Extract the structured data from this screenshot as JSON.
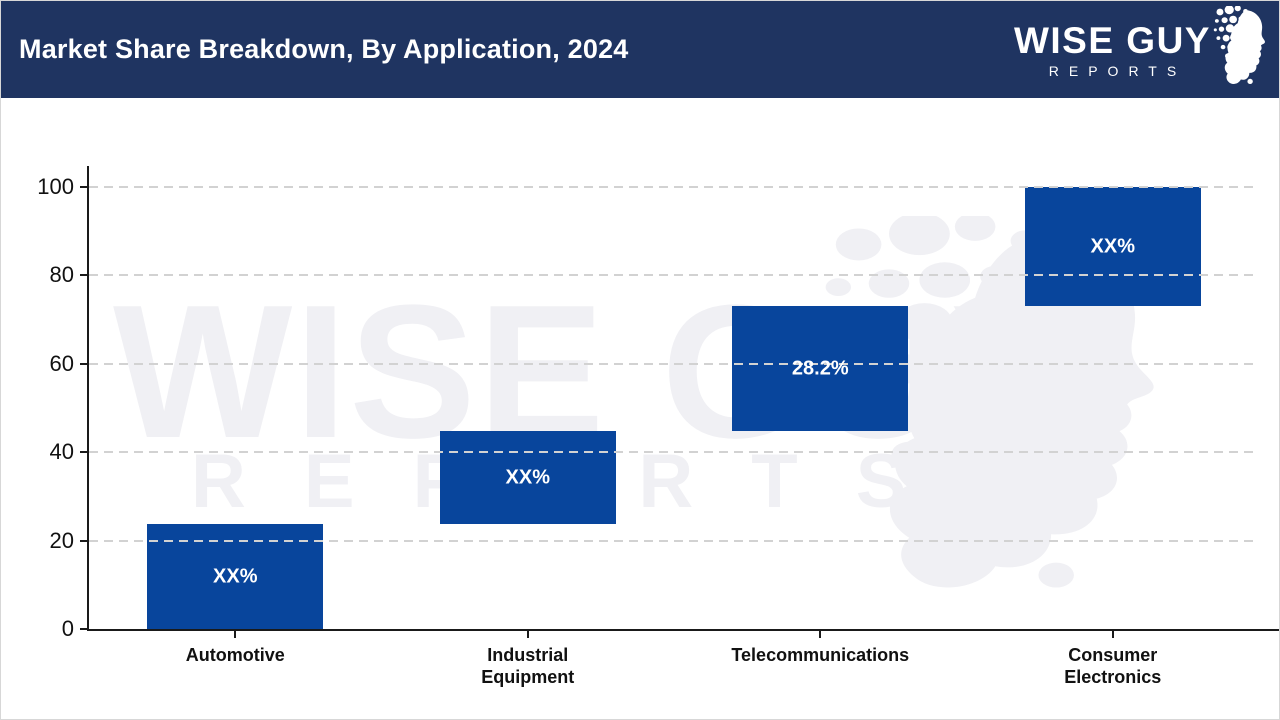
{
  "header": {
    "title": "Market Share Breakdown, By Application, 2024",
    "logo": {
      "wordmark": "WISE GUY",
      "subtitle": "REPORTS"
    }
  },
  "watermark": {
    "wordmark": "WISE GUY",
    "subtitle": "REPORTS"
  },
  "chart_data": {
    "type": "bar",
    "subtype": "waterfall",
    "title": "Market Share Breakdown, By Application, 2024",
    "categories": [
      "Automotive",
      "Industrial Equipment",
      "Telecommunications",
      "Consumer Electronics"
    ],
    "category_lines": [
      [
        "Automotive"
      ],
      [
        "Industrial",
        "Equipment"
      ],
      [
        "Telecommunications"
      ],
      [
        "Consumer",
        "Electronics"
      ]
    ],
    "segments": [
      {
        "category": "Automotive",
        "start": 0,
        "end": 23.7,
        "value_label": "XX%"
      },
      {
        "category": "Industrial Equipment",
        "start": 23.7,
        "end": 44.8,
        "value_label": "XX%"
      },
      {
        "category": "Telecommunications",
        "start": 44.8,
        "end": 73.0,
        "value_label": "28.2%"
      },
      {
        "category": "Consumer Electronics",
        "start": 73.0,
        "end": 100,
        "value_label": "XX%"
      }
    ],
    "ylim": [
      0,
      100
    ],
    "yticks": [
      0,
      20,
      40,
      60,
      80,
      100
    ],
    "xlabel": "",
    "ylabel": "",
    "grid": "horizontal-dashed",
    "legend": "none",
    "bar_color": "#08459c",
    "value_label_color": "#ffffff"
  },
  "colors": {
    "header_bg": "#1f3461",
    "page_bg": "#ffffff",
    "bar": "#08459c",
    "grid": "#d2d2d2",
    "axis": "#1a1a1a",
    "watermark": "#f0f0f4",
    "logo": "#ffffff"
  }
}
